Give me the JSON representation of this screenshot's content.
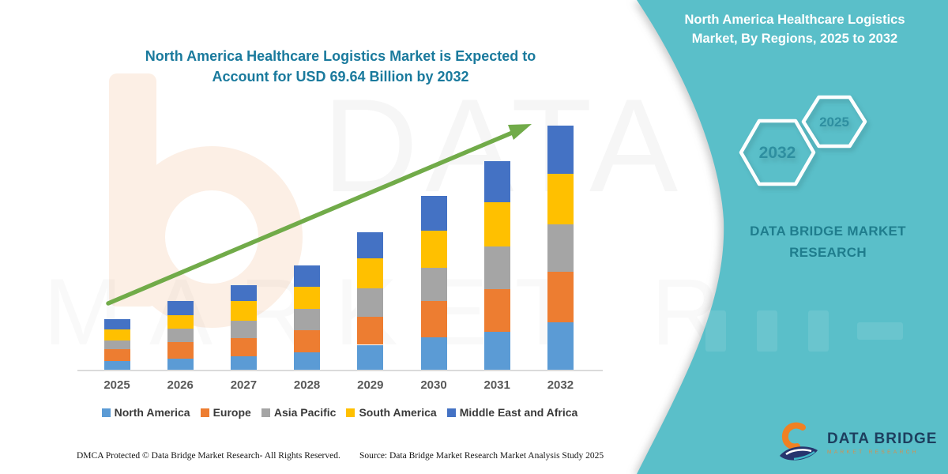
{
  "colors": {
    "teal_panel": "#5ABFC9",
    "chart_title": "#1A7A9D",
    "arrow_green": "#71AB49",
    "hexagon_text": "#2E8FA0",
    "year_label": "#595959"
  },
  "chart": {
    "title_line1": "North America Healthcare Logistics Market is Expected to",
    "title_line2": "Account for USD 69.64 Billion by 2032"
  },
  "chart_data": {
    "type": "bar",
    "subtype": "stacked-vertical",
    "title": "North America Healthcare Logistics Market is Expected to Account for USD 69.64 Billion by 2032",
    "unit": "USD Billion",
    "categories": [
      "2025",
      "2026",
      "2027",
      "2028",
      "2029",
      "2030",
      "2031",
      "2032"
    ],
    "series": [
      {
        "name": "North America",
        "color": "#5B9BD5",
        "values": [
          2.8,
          3.4,
          4.1,
          5.2,
          7.3,
          9.5,
          11.0,
          13.7
        ]
      },
      {
        "name": "Europe",
        "color": "#ED7D31",
        "values": [
          3.2,
          4.6,
          5.2,
          6.2,
          7.9,
          10.2,
          12.2,
          14.4
        ]
      },
      {
        "name": "Asia Pacific",
        "color": "#A5A5A5",
        "values": [
          2.6,
          3.8,
          4.9,
          6.1,
          8.2,
          9.5,
          12.1,
          13.5
        ]
      },
      {
        "name": "South America",
        "color": "#FFC000",
        "values": [
          3.0,
          3.9,
          5.5,
          6.3,
          8.4,
          10.5,
          12.6,
          14.4
        ]
      },
      {
        "name": "Middle East and Africa",
        "color": "#4472C4",
        "values": [
          3.1,
          4.1,
          4.6,
          6.1,
          7.6,
          10.0,
          11.7,
          13.6
        ]
      }
    ],
    "stack_order_bottom_to_top": [
      "North America",
      "Europe",
      "Asia Pacific",
      "South America",
      "Middle East and Africa"
    ],
    "totals_by_year": [
      14.7,
      19.8,
      24.3,
      29.9,
      39.4,
      49.7,
      59.6,
      69.64
    ],
    "ylim": [
      0,
      70
    ],
    "gridlines": false,
    "axis_labels_visible": false,
    "legend_position": "bottom",
    "annotations": [
      "green upward trend arrow from first bar to last bar"
    ]
  },
  "panel": {
    "title_line1": "North America Healthcare Logistics",
    "title_line2": "Market, By Regions, 2025 to 2032",
    "hexagon_large_label": "2032",
    "hexagon_small_label": "2025",
    "brand_caption_line1": "DATA BRIDGE MARKET",
    "brand_caption_line2": "RESEARCH"
  },
  "watermark": {
    "text_primary": "DATA BRIDGE",
    "text_secondary": "MARKET RESEARCH"
  },
  "logo": {
    "name": "DATA BRIDGE",
    "tagline": "MARKET RESEARCH"
  },
  "footer": {
    "dmca": "DMCA Protected © Data Bridge Market Research-  All Rights Reserved.",
    "source": "Source: Data Bridge Market Research  Market Analysis Study 2025"
  }
}
